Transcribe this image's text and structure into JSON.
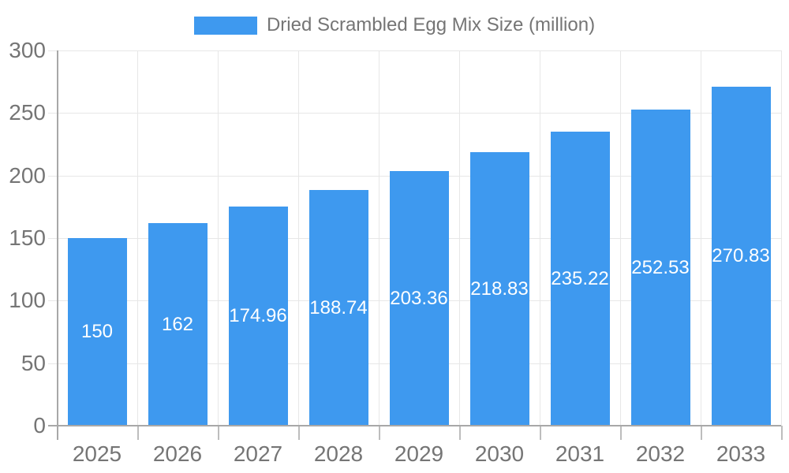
{
  "legend": {
    "label": "Dried Scrambled Egg Mix Size (million)"
  },
  "chart_data": {
    "type": "bar",
    "title": "Dried Scrambled Egg Mix Size (million)",
    "categories": [
      "2025",
      "2026",
      "2027",
      "2028",
      "2029",
      "2030",
      "2031",
      "2032",
      "2033"
    ],
    "values": [
      150,
      162,
      174.96,
      188.74,
      203.36,
      218.83,
      235.22,
      252.53,
      270.83
    ],
    "value_labels": [
      "150",
      "162",
      "174.96",
      "188.74",
      "203.36",
      "218.83",
      "235.22",
      "252.53",
      "270.83"
    ],
    "series_name": "Dried Scrambled Egg Mix Size (million)",
    "xlabel": "",
    "ylabel": "",
    "ylim": [
      0,
      300
    ],
    "yticks": [
      0,
      50,
      100,
      150,
      200,
      250,
      300
    ],
    "grid": true,
    "legend_position": "top",
    "value_label_position": "inside-center",
    "colors": {
      "bar": "#3e99ef",
      "value_label": "#ffffff",
      "axis_text": "#757575",
      "grid_line": "#e7e7e7",
      "axis_line": "#a8a8a8",
      "tick": "#bdbdbd",
      "background": "#ffffff"
    }
  }
}
